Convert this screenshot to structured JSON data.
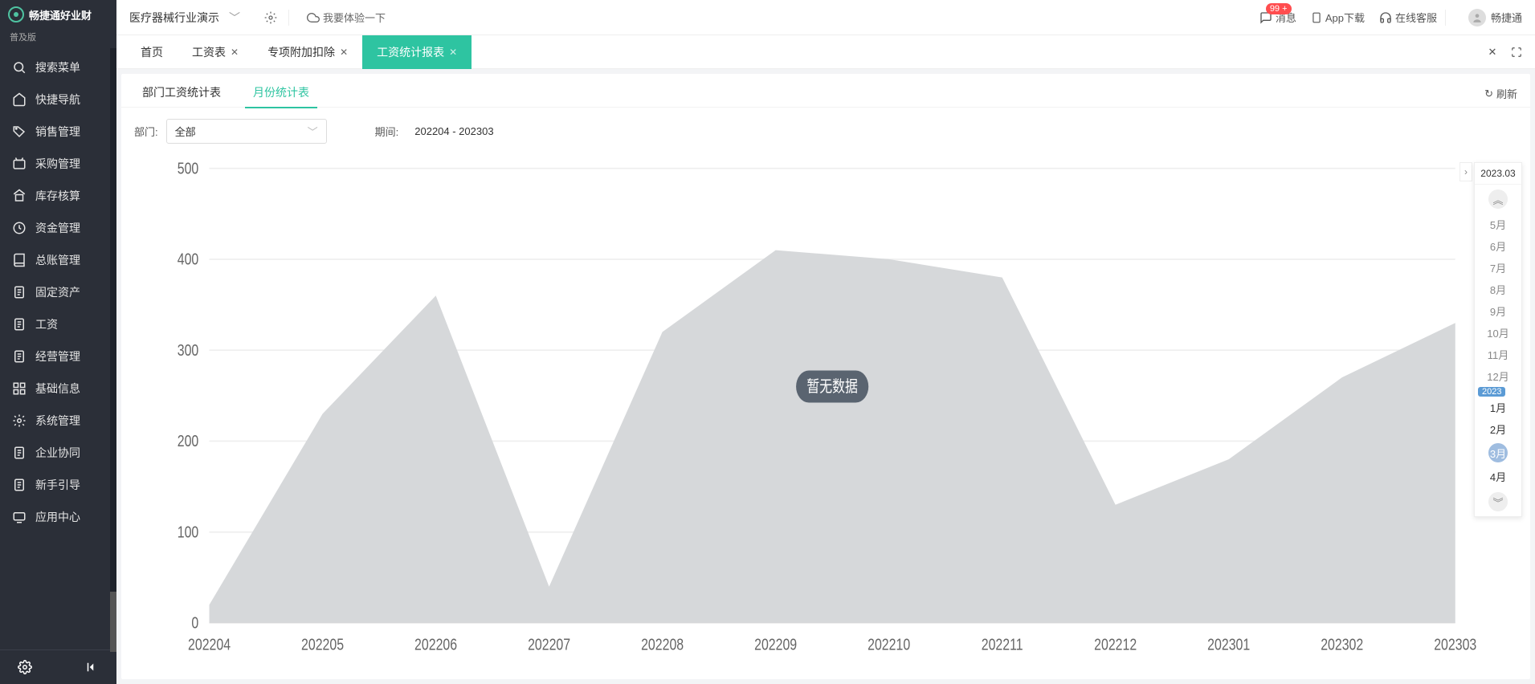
{
  "sidebar": {
    "title": "畅捷通好业财",
    "edition": "普及版",
    "items": [
      {
        "label": "搜索菜单",
        "icon": "search"
      },
      {
        "label": "快捷导航",
        "icon": "home"
      },
      {
        "label": "销售管理",
        "icon": "tag"
      },
      {
        "label": "采购管理",
        "icon": "bag"
      },
      {
        "label": "库存核算",
        "icon": "house"
      },
      {
        "label": "资金管理",
        "icon": "clock"
      },
      {
        "label": "总账管理",
        "icon": "book"
      },
      {
        "label": "固定资产",
        "icon": "doc"
      },
      {
        "label": "工资",
        "icon": "doc"
      },
      {
        "label": "经营管理",
        "icon": "doc"
      },
      {
        "label": "基础信息",
        "icon": "grid"
      },
      {
        "label": "系统管理",
        "icon": "gear2"
      },
      {
        "label": "企业协同",
        "icon": "doc"
      },
      {
        "label": "新手引导",
        "icon": "doc"
      },
      {
        "label": "应用中心",
        "icon": "tv"
      }
    ]
  },
  "header": {
    "org": "医疗器械行业演示",
    "try_label": "我要体验一下",
    "msg_label": "消息",
    "msg_badge": "99 +",
    "app_label": "App下载",
    "service_label": "在线客服",
    "user": "畅捷通"
  },
  "tabs": {
    "items": [
      {
        "label": "首页",
        "closable": false
      },
      {
        "label": "工资表",
        "closable": true
      },
      {
        "label": "专项附加扣除",
        "closable": true
      },
      {
        "label": "工资统计报表",
        "closable": true,
        "active": true
      }
    ]
  },
  "card": {
    "subtabs": [
      {
        "label": "部门工资统计表"
      },
      {
        "label": "月份统计表",
        "active": true
      }
    ],
    "refresh_label": "刷新",
    "dept_label": "部门:",
    "dept_value": "全部",
    "period_label": "期间:",
    "period_value": "202204 - 202303"
  },
  "chart": {
    "type": "area",
    "ylim": [
      0,
      500
    ],
    "ytick_step": 100,
    "yticks": [
      0,
      100,
      200,
      300,
      400,
      500
    ],
    "categories": [
      "202204",
      "202205",
      "202206",
      "202207",
      "202208",
      "202209",
      "202210",
      "202211",
      "202212",
      "202301",
      "202302",
      "202303"
    ],
    "values": [
      20,
      230,
      360,
      40,
      320,
      410,
      400,
      380,
      130,
      180,
      270,
      330
    ],
    "area_color": "#d6d8da",
    "grid_color": "#eeeeee",
    "axis_text_color": "#666666",
    "no_data_label": "暂无数据",
    "no_data_bg": "#5a6470",
    "axis_fontsize": 12
  },
  "month_rail": {
    "header": "2023.03",
    "top_months": [
      "5月",
      "6月",
      "7月",
      "8月",
      "9月",
      "10月",
      "11月",
      "12月"
    ],
    "year_badge": "2023",
    "bottom_months": [
      {
        "label": "1月"
      },
      {
        "label": "2月"
      },
      {
        "label": "3月",
        "selected": true
      },
      {
        "label": "4月"
      }
    ]
  }
}
